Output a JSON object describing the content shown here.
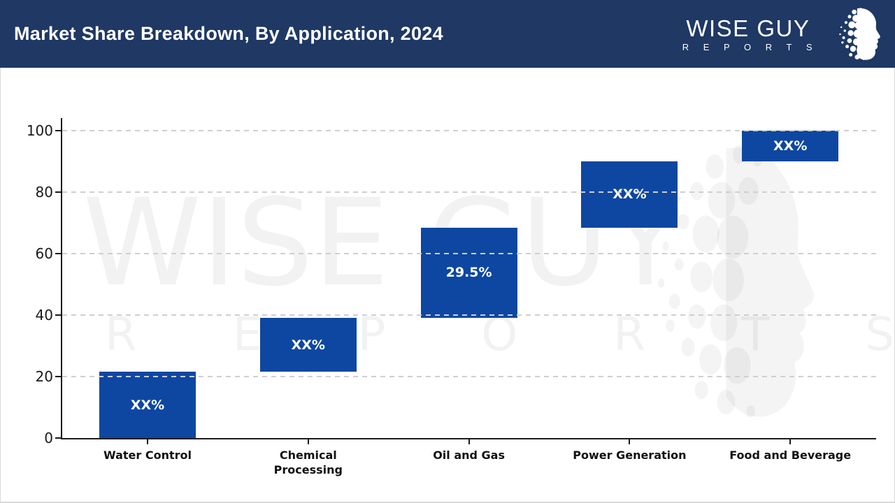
{
  "header": {
    "title": "Market Share Breakdown, By Application, 2024",
    "logo_line1": "WISE GUY",
    "logo_line2": "R E P O R T S"
  },
  "watermark": {
    "line1": "WISE GUY",
    "line2": "R E P O R T S"
  },
  "colors": {
    "header_bg": "#1f3864",
    "bar": "#0d47a1",
    "bar_label": "#ffffff",
    "axis": "#1a1a1a",
    "grid": "#cfcfcf",
    "tick_label": "#1a1a1a"
  },
  "chart_data": {
    "type": "bar",
    "subtype": "waterfall",
    "title": "Market Share Breakdown, By Application, 2024",
    "categories": [
      "Water Control",
      "Chemical Processing",
      "Oil and Gas",
      "Power Generation",
      "Food and Beverage"
    ],
    "bars": [
      {
        "category": "Water Control",
        "tick_label": "Water Control",
        "base": 0,
        "top": 21.5,
        "value_label": "XX%"
      },
      {
        "category": "Chemical Processing",
        "tick_label": "Chemical\nProcessing",
        "base": 21.5,
        "top": 39,
        "value_label": "XX%"
      },
      {
        "category": "Oil and Gas",
        "tick_label": "Oil and Gas",
        "base": 39,
        "top": 68.5,
        "value_label": "29.5%"
      },
      {
        "category": "Power Generation",
        "tick_label": "Power Generation",
        "base": 68.5,
        "top": 90,
        "value_label": "XX%"
      },
      {
        "category": "Food and Beverage",
        "tick_label": "Food and Beverage",
        "base": 90,
        "top": 100,
        "value_label": "XX%"
      }
    ],
    "yticks": [
      0,
      20,
      40,
      60,
      80,
      100
    ],
    "ylim": [
      0,
      104
    ],
    "xlabel": "",
    "ylabel": "",
    "grid": "horizontal-dashed-over-bars",
    "legend": "none"
  }
}
